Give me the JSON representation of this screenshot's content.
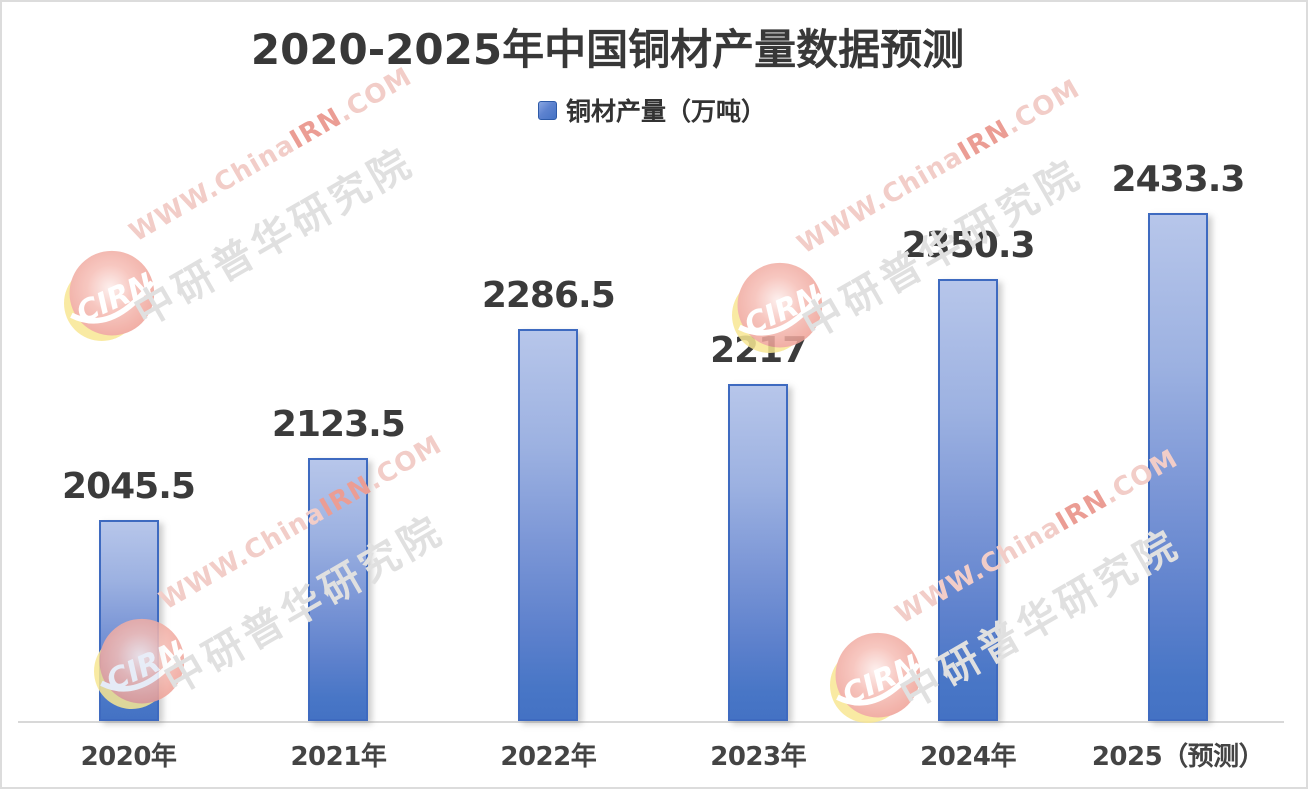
{
  "title": "2020-2025年中国铜材产量数据预测",
  "legend": {
    "label": "铜材产量（万吨）",
    "marker_color": "#4472c4"
  },
  "chart_data": {
    "type": "bar",
    "title": "2020-2025年中国铜材产量数据预测",
    "categories": [
      "2020年",
      "2021年",
      "2022年",
      "2023年",
      "2024年",
      "2025（预测）"
    ],
    "series": [
      {
        "name": "铜材产量（万吨）",
        "values": [
          2045.5,
          2123.5,
          2286.5,
          2217,
          2350.3,
          2433.3
        ]
      }
    ],
    "data_labels": [
      "2045.5",
      "2123.5",
      "2286.5",
      "2217",
      "2350.3",
      "2433.3"
    ],
    "xlabel": "",
    "ylabel": "",
    "ylim": [
      1792,
      2560
    ],
    "grid": false,
    "legend_position": "top",
    "bar_color_top": "#b7c6ea",
    "bar_color_bottom": "#4472c4",
    "axis_line_color": "#d8d8d8",
    "label_color": "#3b3b3b"
  },
  "watermark": {
    "url_www": "WWW.China",
    "url_irn": "IRN",
    "url_com": ".COM",
    "org": "中研普华研究院",
    "logo_text": "CIRN"
  }
}
